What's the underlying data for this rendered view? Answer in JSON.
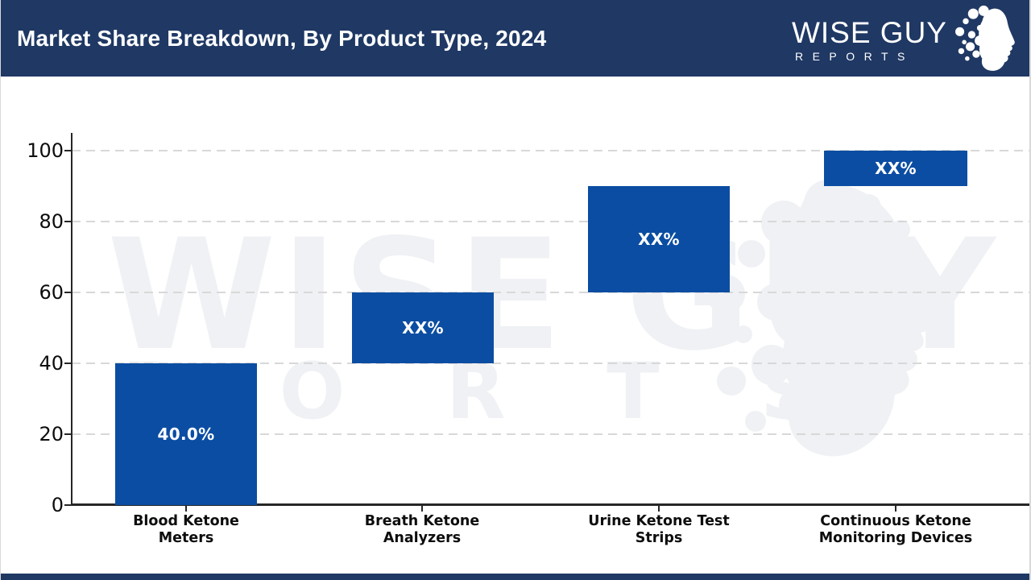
{
  "header": {
    "title": "Market Share Breakdown, By Product Type, 2024",
    "bg_color": "#1f3864",
    "logo": {
      "name_top": "WISE GUY",
      "name_bottom": "REPORTS"
    }
  },
  "watermark": {
    "line1": "WISE GUY",
    "line2": "P O R T S"
  },
  "chart_data": {
    "type": "bar",
    "variant": "waterfall / floating segment bars, no legend",
    "title": "Market Share Breakdown, By Product Type, 2024",
    "categories": [
      "Blood Ketone Meters",
      "Breath Ketone Analyzers",
      "Urine Ketone Test Strips",
      "Continuous Ketone Monitoring Devices"
    ],
    "category_label_lines": [
      {
        "l1": "Blood Ketone",
        "l2": "Meters"
      },
      {
        "l1": "Breath Ketone",
        "l2": "Analyzers"
      },
      {
        "l1": "Urine Ketone Test",
        "l2": "Strips"
      },
      {
        "l1": "Continuous Ketone",
        "l2": "Monitoring Devices"
      }
    ],
    "segments": [
      {
        "category": "Blood Ketone Meters",
        "start": 0,
        "end": 40,
        "value": 40,
        "label": "40.0%"
      },
      {
        "category": "Breath Ketone Analyzers",
        "start": 40,
        "end": 60,
        "value": 20,
        "label": "XX%"
      },
      {
        "category": "Urine Ketone Test Strips",
        "start": 60,
        "end": 90,
        "value": 30,
        "label": "XX%"
      },
      {
        "category": "Continuous Ketone Monitoring Devices",
        "start": 90,
        "end": 100,
        "value": 10,
        "label": "XX%"
      }
    ],
    "y_ticks": [
      0,
      20,
      40,
      60,
      80,
      100
    ],
    "y_tick_labels_top_to_bottom": [
      "100",
      "80",
      "60",
      "40",
      "20",
      "0"
    ],
    "ylim": [
      0,
      105
    ],
    "xlabel": "",
    "ylabel": "",
    "grid": "horizontal dashed gridlines at 20,40,60,80,100",
    "legend_position": "none",
    "bar_color": "#0b4da2",
    "bar_label_color": "#ffffff",
    "axis_color": "#262626"
  },
  "colors": {
    "header_bg": "#1f3864",
    "footer_bg": "#1f3864",
    "bar_blue": "#0b4da2",
    "gridline_gray": "#d8d8d8",
    "watermark_gray": "#eff1f4"
  }
}
